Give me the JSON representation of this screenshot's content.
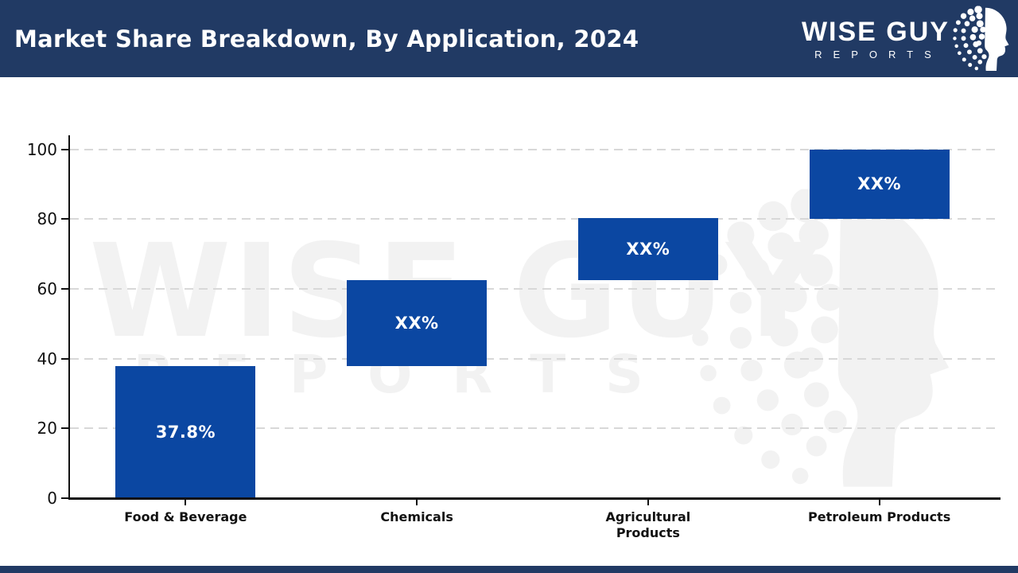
{
  "header": {
    "title": "Market Share Breakdown, By Application, 2024",
    "logo": {
      "primary": "WISE GUY",
      "secondary": "REPORTS"
    }
  },
  "watermark": {
    "primary": "WISE GUY",
    "secondary": "REPORTS"
  },
  "chart_data": {
    "type": "bar",
    "variant": "floating-waterfall",
    "title": "Market Share Breakdown, By Application, 2024",
    "unit": "%",
    "categories": [
      "Food & Beverage",
      "Chemicals",
      "Agricultural Products",
      "Petroleum Products"
    ],
    "segments": [
      {
        "category": "Food & Beverage",
        "base": 0,
        "top": 37.8,
        "label": "37.8%"
      },
      {
        "category": "Chemicals",
        "base": 37.8,
        "top": 62.5,
        "label": "XX%"
      },
      {
        "category": "Agricultural Products",
        "base": 62.5,
        "top": 80.2,
        "label": "XX%"
      },
      {
        "category": "Petroleum Products",
        "base": 80.1,
        "top": 100,
        "label": "XX%"
      }
    ],
    "ylim": [
      0,
      100
    ],
    "yticks": [
      0,
      20,
      40,
      60,
      80,
      100
    ],
    "grid": "horizontal-dashed",
    "legend": "none",
    "bar_color": "#0B47A2",
    "bar_label_color": "#FFFFFF"
  },
  "colors": {
    "header_bg": "#213A64",
    "footer_bg": "#213A64",
    "bar": "#0B47A2",
    "axis": "#111111",
    "grid_line": "#D8D8D8",
    "watermark": "#F2F2F2",
    "title_text": "#FFFFFF"
  }
}
